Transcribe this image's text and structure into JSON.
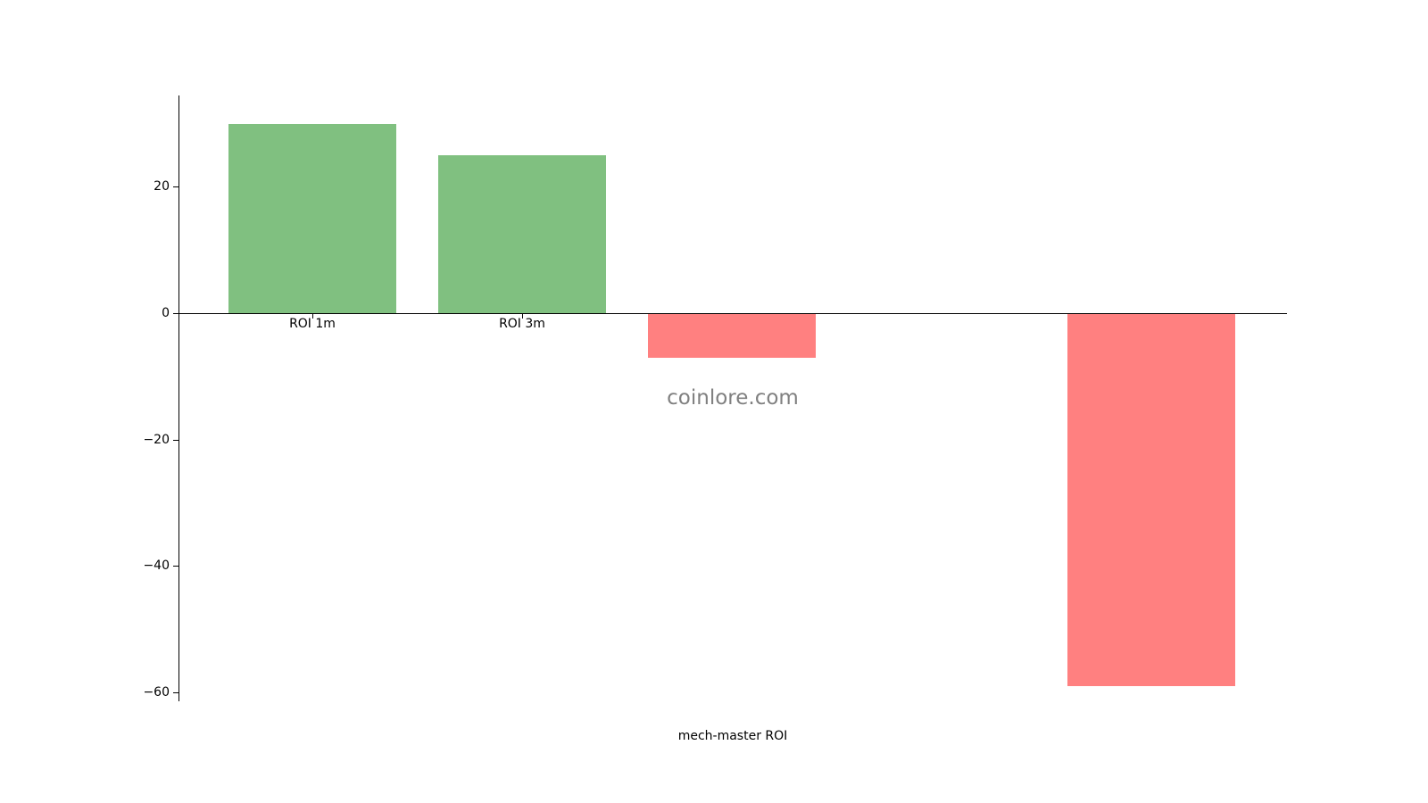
{
  "watermark": "coinlore.com",
  "chart_data": {
    "type": "bar",
    "title": "",
    "xlabel": "mech-master ROI",
    "ylabel": "",
    "categories": [
      "ROI 1m",
      "ROI 3m",
      "",
      "",
      ""
    ],
    "values": [
      30,
      25,
      -7,
      0,
      -59
    ],
    "bar_visible": [
      true,
      true,
      true,
      false,
      true
    ],
    "positive_color": "#80C080",
    "negative_color": "#FF8080",
    "yticks": [
      20,
      0,
      -20,
      -40,
      -60
    ],
    "ytick_labels": [
      "20",
      "0",
      "−20",
      "−40",
      "−60"
    ],
    "ylim": [
      -61.5,
      34.6
    ],
    "num_slots": 5,
    "grid": false,
    "legend": false,
    "axis_color": "#000000",
    "text_color": "#000000",
    "watermark": "coinlore.com",
    "watermark_color": "#808080"
  }
}
